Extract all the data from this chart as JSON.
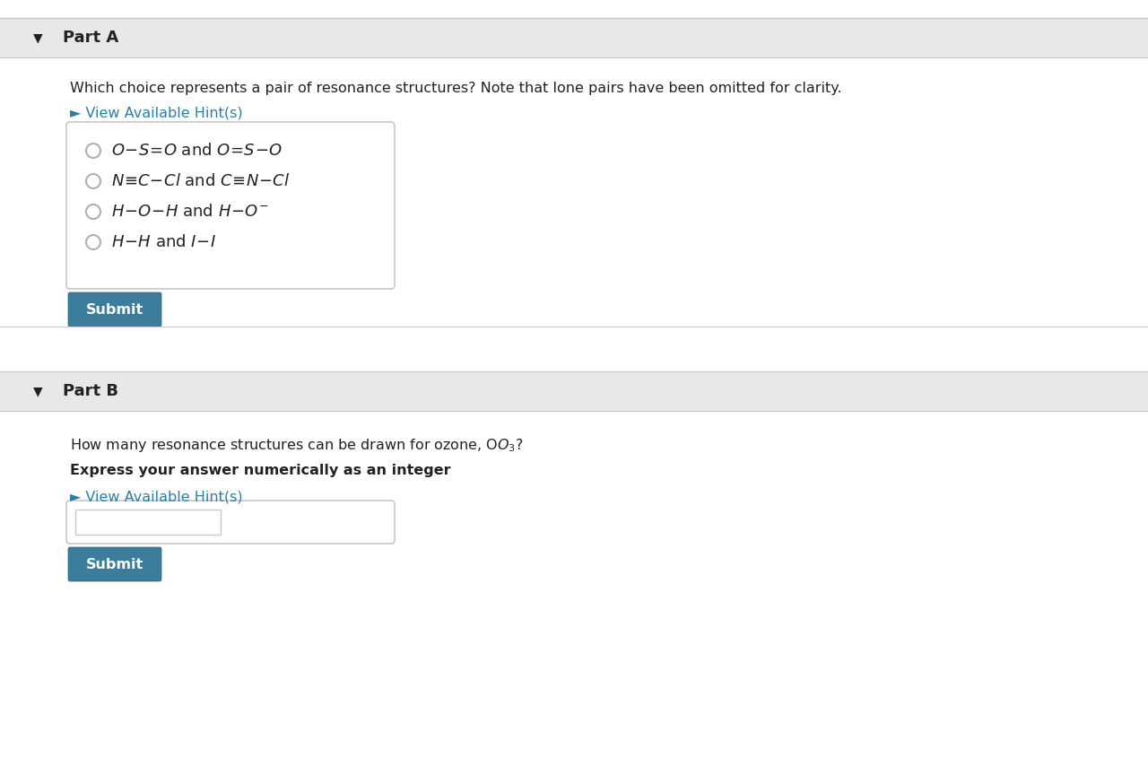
{
  "bg_color": "#f0f0f0",
  "white": "#ffffff",
  "border_color": "#c8c8c8",
  "header_bg": "#e8e8e8",
  "teal_color": "#3b7d9b",
  "teal_dark": "#2e6880",
  "text_color": "#222222",
  "hint_color": "#2e7da6",
  "radio_color": "#b0b0b0",
  "part_a_label": "Part A",
  "part_b_label": "Part B",
  "question_a": "Which choice represents a pair of resonance structures? Note that lone pairs have been omitted for clarity.",
  "question_b_prefix": "How many resonance structures can be drawn for ozone, O",
  "question_b_subscript": "3",
  "question_b_suffix": "?",
  "bold_text": "Express your answer numerically as an integer",
  "hint_text": "► View Available Hint(s)",
  "submit_text": "Submit",
  "arrow_symbol": "▼",
  "figure_width": 12.8,
  "figure_height": 8.74
}
